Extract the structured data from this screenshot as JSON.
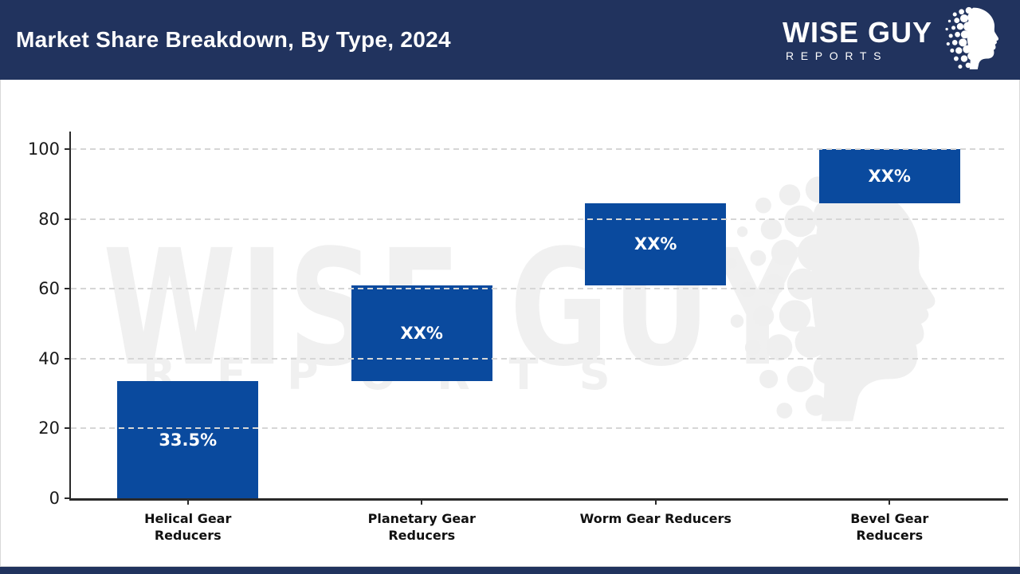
{
  "header": {
    "title": "Market Share Breakdown, By Type, 2024",
    "logo": {
      "line1": "WISE GUY",
      "line2": "REPORTS"
    }
  },
  "watermark": {
    "line1": "WISE GUY",
    "line2": "REPORTS"
  },
  "chart_data": {
    "type": "bar",
    "subtype": "floating-waterfall",
    "title": "Market Share Breakdown, By Type, 2024",
    "categories": [
      [
        "Helical Gear",
        "Reducers"
      ],
      [
        "Planetary Gear",
        "Reducers"
      ],
      [
        "Worm Gear Reducers"
      ],
      [
        "Bevel Gear",
        "Reducers"
      ]
    ],
    "segments": [
      {
        "start": 0,
        "end": 33.5,
        "label": "33.5%"
      },
      {
        "start": 33.5,
        "end": 61,
        "label": "XX%"
      },
      {
        "start": 61,
        "end": 84.5,
        "label": "XX%"
      },
      {
        "start": 84.5,
        "end": 100,
        "label": "XX%"
      }
    ],
    "values": [
      33.5,
      27.5,
      23.5,
      15.5
    ],
    "yticks": [
      0,
      20,
      40,
      60,
      80,
      100
    ],
    "ylim": [
      0,
      100
    ],
    "xlabel": "",
    "ylabel": "",
    "grid": true,
    "legend": "none",
    "bar_color": "#0a4a9e",
    "bar_label_color": "#ffffff"
  },
  "colors": {
    "header_bg": "#21335e",
    "footer_bg": "#21335e",
    "bar": "#0a4a9e",
    "axis": "#2a2a2a",
    "grid": "#d6d6d6",
    "watermark": "#f0f0f0"
  }
}
